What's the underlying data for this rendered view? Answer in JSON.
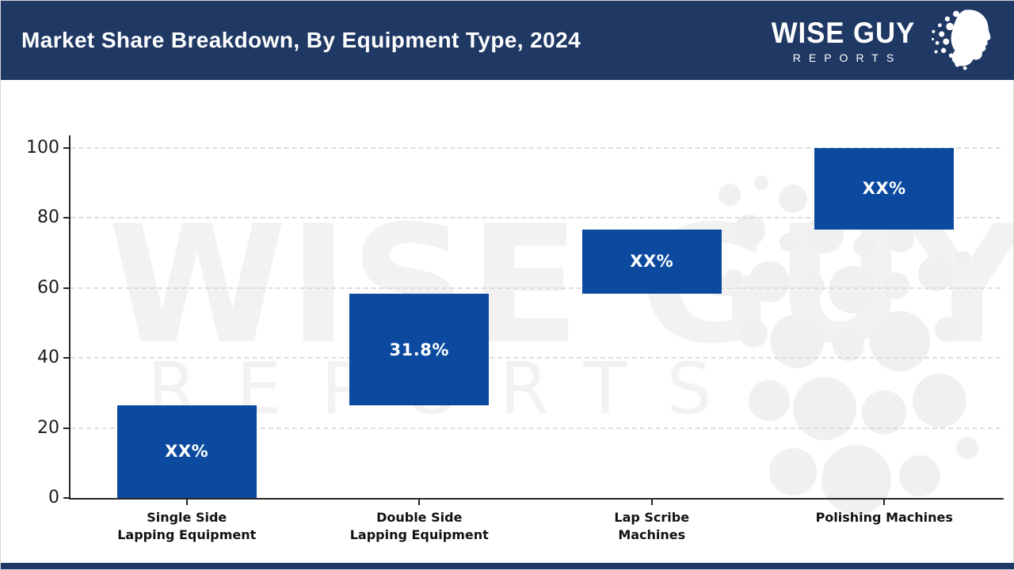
{
  "header": {
    "title": "Market Share Breakdown, By Equipment Type, 2024",
    "logo": {
      "line1": "WISE GUY",
      "line2": "REPORTS"
    }
  },
  "watermark": {
    "line1": "WISE GUY",
    "line2": "REPORTS"
  },
  "colors": {
    "header_bg": "#1F3864",
    "footer_bg": "#1F3864",
    "bar": "#0B4A9F",
    "axis": "#262626",
    "grid": "#DCDCDC",
    "watermark_text": "#F2F2F2",
    "watermark_dots": "#F0F0F0",
    "title_text": "#FFFFFF"
  },
  "chart_data": {
    "type": "bar",
    "subtype": "floating-waterfall",
    "title": "Market Share Breakdown, By Equipment Type, 2024",
    "categories": [
      [
        "Single Side",
        "Lapping Equipment"
      ],
      [
        "Double Side",
        "Lapping Equipment"
      ],
      [
        "Lap Scribe",
        "Machines"
      ],
      [
        "Polishing Machines"
      ]
    ],
    "bars": [
      {
        "label": "XX%",
        "start": 0,
        "end": 26.5
      },
      {
        "label": "31.8%",
        "start": 26.5,
        "end": 58.3
      },
      {
        "label": "XX%",
        "start": 58.3,
        "end": 76.8
      },
      {
        "label": "XX%",
        "start": 76.8,
        "end": 100
      }
    ],
    "ylim": [
      0,
      100
    ],
    "yticks": [
      0,
      20,
      40,
      60,
      80,
      100
    ],
    "xlabel": "",
    "ylabel": "",
    "grid": "horizontal-dashed",
    "legend": "none",
    "bar_width_frac": 0.6
  }
}
